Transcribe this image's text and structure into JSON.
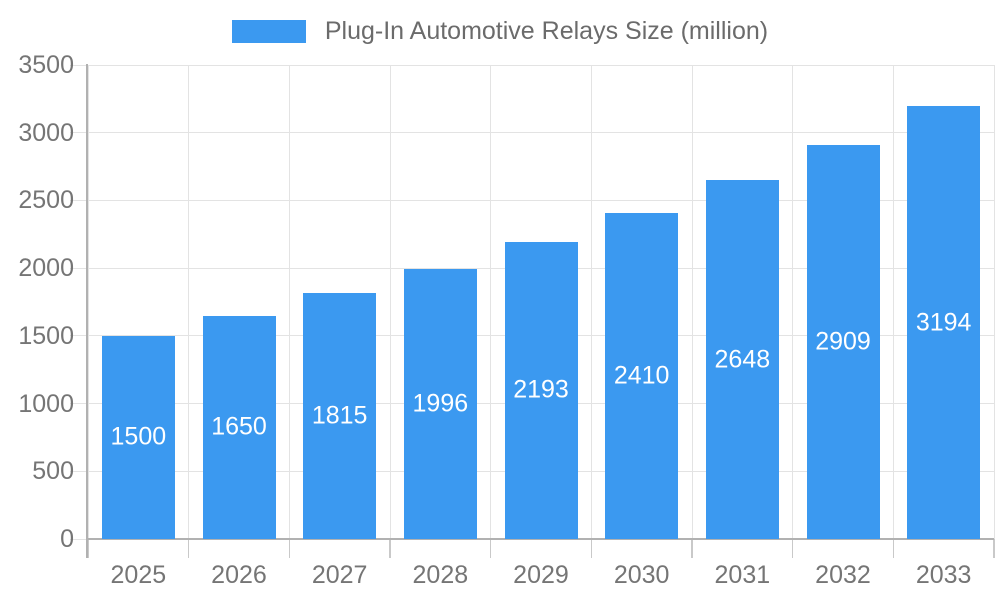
{
  "chart_data": {
    "type": "bar",
    "title": "Plug-In Automotive Relays Size (million)",
    "categories": [
      "2025",
      "2026",
      "2027",
      "2028",
      "2029",
      "2030",
      "2031",
      "2032",
      "2033"
    ],
    "values": [
      1500,
      1650,
      1815,
      1996,
      2193,
      2410,
      2648,
      2909,
      3194
    ],
    "xlabel": "",
    "ylabel": "",
    "ylim": [
      0,
      3500
    ],
    "yticks": [
      0,
      500,
      1000,
      1500,
      2000,
      2500,
      3000,
      3500
    ],
    "grid": true,
    "legend_position": "top-center",
    "bar_label_position": "inside-center",
    "colors": {
      "bar": "#3b99f0",
      "bar_label": "#ffffff",
      "axis_text": "#757575",
      "legend_text": "#6b6b6b",
      "gridline": "#e3e3e3",
      "axis_line": "#b1b1b1",
      "tick": "#c9c9c9",
      "background": "#ffffff"
    }
  }
}
